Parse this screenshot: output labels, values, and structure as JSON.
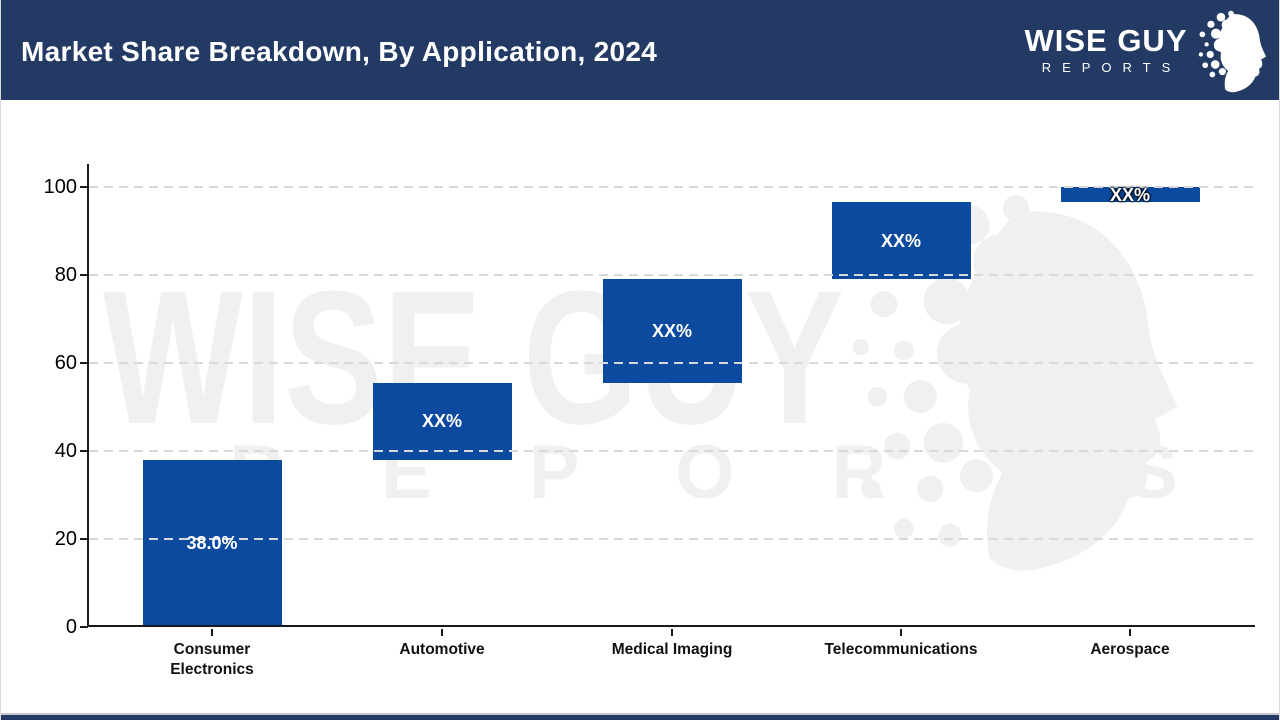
{
  "header": {
    "title": "Market Share Breakdown, By Application, 2024",
    "bg_color": "#223a64",
    "logo": {
      "line1": "WISE GUY",
      "line2": "REPORTS"
    }
  },
  "watermark": {
    "line1": "WISE GUY",
    "line2": "REPORTS"
  },
  "chart_data": {
    "type": "bar",
    "subtype": "waterfall-floating-segments",
    "title": "Market Share Breakdown, By Application, 2024",
    "categories": [
      "Consumer Electronics",
      "Automotive",
      "Medical Imaging",
      "Telecommunications",
      "Aerospace"
    ],
    "xtick_labels": [
      "Consumer\nElectronics",
      "Automotive",
      "Medical Imaging",
      "Telecommunications",
      "Aerospace"
    ],
    "segments": [
      {
        "category": "Consumer Electronics",
        "start": 0,
        "end": 38,
        "label": "38.0%"
      },
      {
        "category": "Automotive",
        "start": 38,
        "end": 55.5,
        "label": "XX%"
      },
      {
        "category": "Medical Imaging",
        "start": 55.5,
        "end": 79,
        "label": "XX%"
      },
      {
        "category": "Telecommunications",
        "start": 79,
        "end": 96.5,
        "label": "XX%"
      },
      {
        "category": "Aerospace",
        "start": 96.5,
        "end": 100,
        "label": "XX%"
      }
    ],
    "yticks": [
      0,
      20,
      40,
      60,
      80,
      100
    ],
    "ylim": [
      0,
      105
    ],
    "grid": "horizontal dashed, drawn above bars",
    "legend": "none",
    "bar_color": "#0b4a9e",
    "label_color": "#ffffff"
  }
}
